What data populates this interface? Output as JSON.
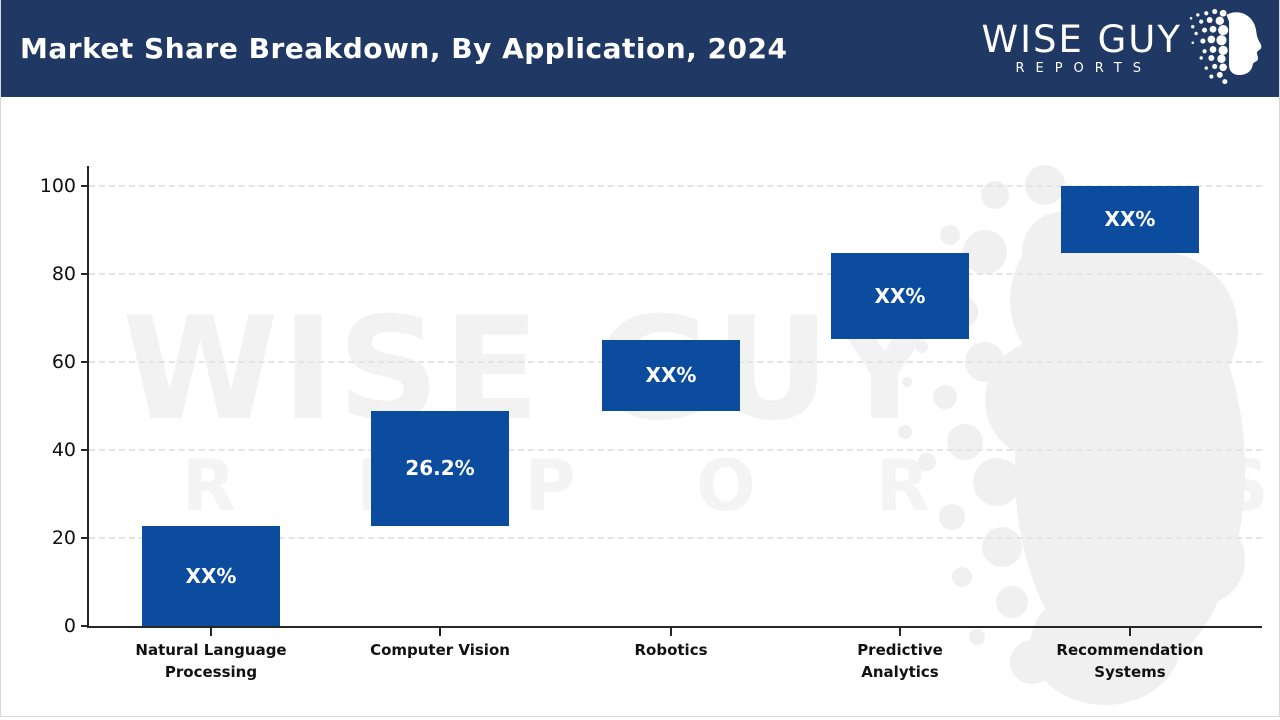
{
  "header": {
    "title": "Market Share Breakdown, By Application, 2024",
    "bg_color": "#203864",
    "logo": {
      "line1": "WISE GUY",
      "line2": "REPORTS"
    }
  },
  "watermark": {
    "line1": "WISE GUY",
    "line2": "R E P O R T S"
  },
  "chart_data": {
    "type": "bar",
    "subtype": "floating-segment (waterfall-style market share breakdown)",
    "title": "Market Share Breakdown, By Application, 2024",
    "categories": [
      "Natural Language Processing",
      "Computer Vision",
      "Robotics",
      "Predictive Analytics",
      "Recommendation Systems"
    ],
    "category_lines": [
      [
        "Natural Language",
        "Processing"
      ],
      [
        "Computer Vision"
      ],
      [
        "Robotics"
      ],
      [
        "Predictive",
        "Analytics"
      ],
      [
        "Recommendation",
        "Systems"
      ]
    ],
    "segments": [
      {
        "start": 0,
        "end": 22.7,
        "label": "XX%"
      },
      {
        "start": 22.7,
        "end": 48.9,
        "label": "26.2%"
      },
      {
        "start": 48.9,
        "end": 65.1,
        "label": "XX%"
      },
      {
        "start": 65.2,
        "end": 84.8,
        "label": "XX%"
      },
      {
        "start": 84.8,
        "end": 100,
        "label": "XX%"
      }
    ],
    "xlabel": "",
    "ylabel": "",
    "ylim": [
      0,
      100
    ],
    "yticks": [
      0,
      20,
      40,
      60,
      80,
      100
    ],
    "grid": "horizontal dashed gridlines at each ytick, on",
    "legend": "none",
    "bar_color": "#0c4c9f",
    "bar_label_color": "#ffffff",
    "axis_color": "#262626"
  }
}
